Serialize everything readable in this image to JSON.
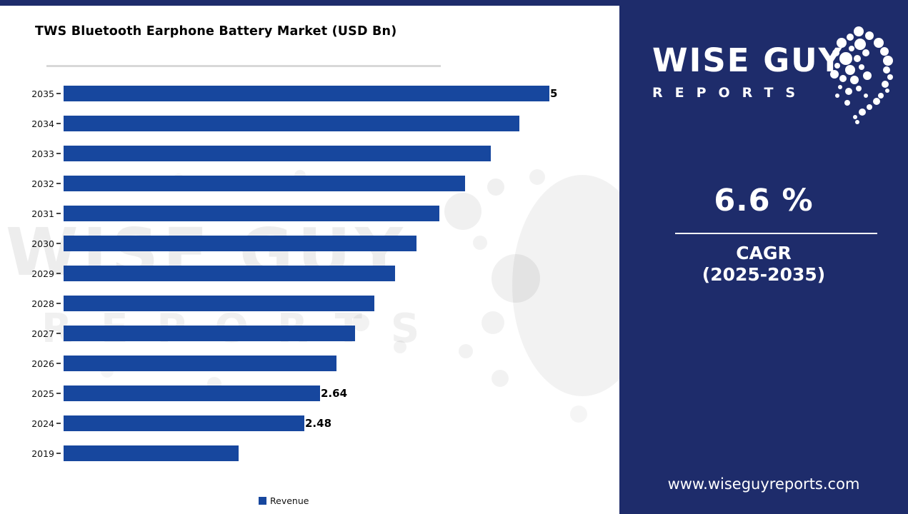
{
  "title": "TWS Bluetooth Earphone Battery Market (USD Bn)",
  "legend": {
    "label": "Revenue"
  },
  "watermark": {
    "line1": "WISE GUY",
    "line2": "REPORTS"
  },
  "colors": {
    "bar": "#17479e",
    "panel_background": "#1e2c6b",
    "divider": "#d8d8d8"
  },
  "chart_data": {
    "type": "bar",
    "orientation": "horizontal",
    "title": "TWS Bluetooth Earphone Battery Market (USD Bn)",
    "series_name": "Revenue",
    "unit": "USD Bn",
    "categories": [
      "2035",
      "2034",
      "2033",
      "2032",
      "2031",
      "2030",
      "2029",
      "2028",
      "2027",
      "2026",
      "2025",
      "2024",
      "2019"
    ],
    "values": [
      5.0,
      4.69,
      4.4,
      4.13,
      3.87,
      3.63,
      3.41,
      3.2,
      3.0,
      2.81,
      2.64,
      2.48,
      1.8
    ],
    "bar_labels": [
      "5",
      "",
      "",
      "",
      "",
      "",
      "",
      "",
      "",
      "",
      "2.64",
      "2.48",
      ""
    ],
    "xlim": [
      0,
      5.3
    ],
    "grid": false,
    "legend_position": "bottom"
  },
  "side_panel": {
    "logo_line1": "WISE GUY",
    "logo_line2": "REPORTS",
    "cagr_value": "6.6 %",
    "cagr_title": "CAGR",
    "cagr_period": "(2025-2035)",
    "website": "www.wiseguyreports.com"
  }
}
